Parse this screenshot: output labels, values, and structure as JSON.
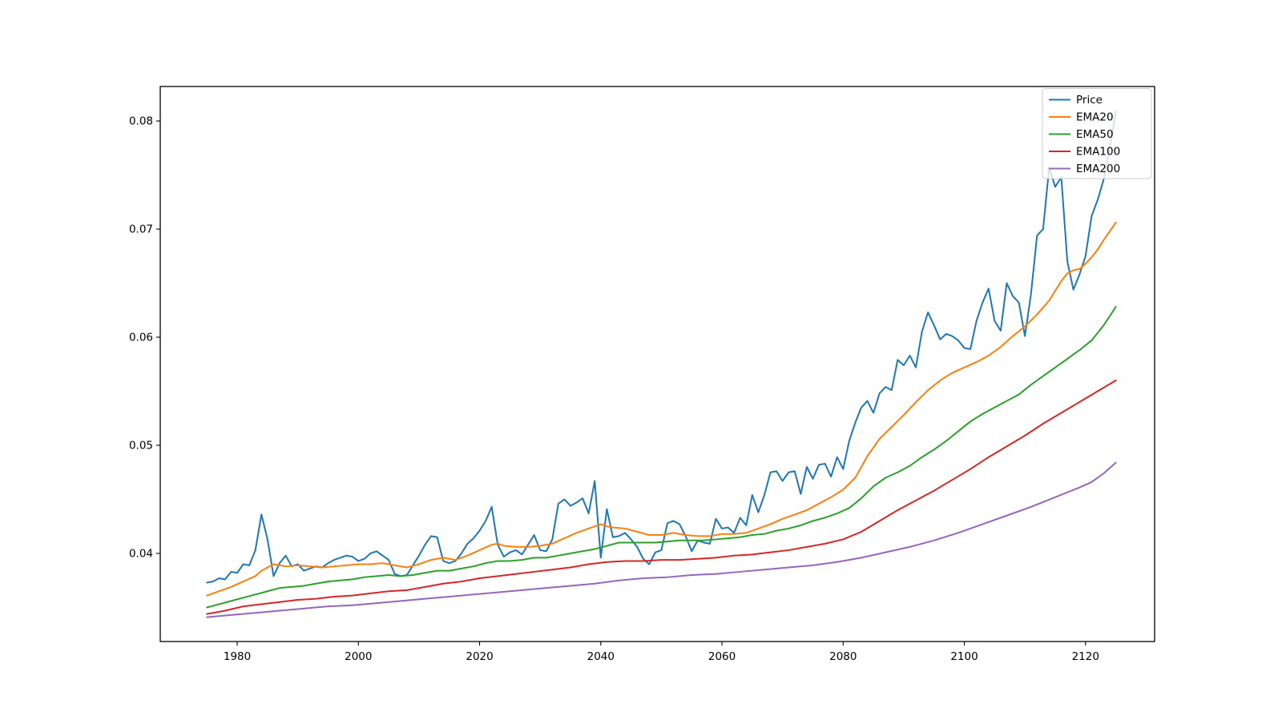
{
  "chart_data": {
    "type": "line",
    "title": "",
    "xlabel": "",
    "ylabel": "",
    "grid": false,
    "legend_position": "upper right",
    "legend_entries": [
      "Price",
      "EMA20",
      "EMA50",
      "EMA100",
      "EMA200"
    ],
    "x_ticks": [
      1980,
      2000,
      2020,
      2040,
      2060,
      2080,
      2100,
      2120
    ],
    "y_ticks": [
      0.04,
      0.05,
      0.06,
      0.07,
      0.08
    ],
    "xlim": [
      1967.3,
      2131.4
    ],
    "ylim": [
      0.03185,
      0.08319
    ],
    "series": [
      {
        "name": "Price",
        "color": "#1f77b4",
        "x_start": 1975,
        "x_step": 1,
        "values": [
          0.0373,
          0.0374,
          0.0377,
          0.0376,
          0.0383,
          0.0382,
          0.039,
          0.0389,
          0.0403,
          0.0436,
          0.0413,
          0.0379,
          0.0391,
          0.0398,
          0.0388,
          0.039,
          0.0384,
          0.0386,
          0.0388,
          0.0387,
          0.0391,
          0.0394,
          0.0396,
          0.0398,
          0.0397,
          0.0393,
          0.0395,
          0.04,
          0.0402,
          0.0398,
          0.0394,
          0.0381,
          0.0379,
          0.038,
          0.0389,
          0.0398,
          0.0408,
          0.0416,
          0.0415,
          0.0393,
          0.0391,
          0.0393,
          0.04,
          0.0409,
          0.0414,
          0.0421,
          0.043,
          0.0443,
          0.0408,
          0.0397,
          0.0401,
          0.0403,
          0.0399,
          0.0408,
          0.0417,
          0.0403,
          0.0402,
          0.0413,
          0.0446,
          0.045,
          0.0444,
          0.0447,
          0.0451,
          0.0437,
          0.0467,
          0.0396,
          0.0441,
          0.0415,
          0.0416,
          0.0419,
          0.0413,
          0.0406,
          0.0395,
          0.039,
          0.0401,
          0.0403,
          0.0428,
          0.043,
          0.0427,
          0.0416,
          0.0402,
          0.0412,
          0.041,
          0.0409,
          0.0432,
          0.0423,
          0.0424,
          0.0419,
          0.0433,
          0.0426,
          0.0454,
          0.0438,
          0.0454,
          0.0475,
          0.0476,
          0.0467,
          0.0475,
          0.0476,
          0.0455,
          0.048,
          0.0469,
          0.0482,
          0.0483,
          0.0471,
          0.0489,
          0.0478,
          0.0504,
          0.0521,
          0.0535,
          0.0541,
          0.053,
          0.0548,
          0.0554,
          0.0551,
          0.0579,
          0.0574,
          0.0583,
          0.0572,
          0.0605,
          0.0623,
          0.0611,
          0.0598,
          0.0603,
          0.0601,
          0.0597,
          0.059,
          0.0589,
          0.0615,
          0.0632,
          0.0645,
          0.0615,
          0.0606,
          0.065,
          0.0638,
          0.0632,
          0.0601,
          0.064,
          0.0694,
          0.07,
          0.0757,
          0.0739,
          0.0748,
          0.067,
          0.0644,
          0.0658,
          0.0675,
          0.0712,
          0.0727,
          0.0746,
          0.0775,
          0.0809
        ]
      },
      {
        "name": "EMA20",
        "color": "#ff7f0e",
        "points": [
          [
            1975,
            0.0361
          ],
          [
            1977,
            0.0365
          ],
          [
            1979,
            0.0369
          ],
          [
            1981,
            0.0374
          ],
          [
            1983,
            0.0379
          ],
          [
            1984,
            0.0384
          ],
          [
            1986,
            0.039
          ],
          [
            1988,
            0.0388
          ],
          [
            1990,
            0.0389
          ],
          [
            1992,
            0.0388
          ],
          [
            1994,
            0.0387
          ],
          [
            1996,
            0.0388
          ],
          [
            1998,
            0.0389
          ],
          [
            2000,
            0.039
          ],
          [
            2002,
            0.039
          ],
          [
            2004,
            0.0391
          ],
          [
            2006,
            0.0389
          ],
          [
            2008,
            0.0387
          ],
          [
            2010,
            0.039
          ],
          [
            2012,
            0.0394
          ],
          [
            2014,
            0.0396
          ],
          [
            2016,
            0.0394
          ],
          [
            2018,
            0.0398
          ],
          [
            2020,
            0.0403
          ],
          [
            2022,
            0.0408
          ],
          [
            2023,
            0.0409
          ],
          [
            2024,
            0.0407
          ],
          [
            2026,
            0.0406
          ],
          [
            2028,
            0.0406
          ],
          [
            2030,
            0.0407
          ],
          [
            2032,
            0.0409
          ],
          [
            2034,
            0.0414
          ],
          [
            2036,
            0.0419
          ],
          [
            2038,
            0.0423
          ],
          [
            2040,
            0.0427
          ],
          [
            2041,
            0.0425
          ],
          [
            2042,
            0.0424
          ],
          [
            2044,
            0.0423
          ],
          [
            2046,
            0.042
          ],
          [
            2048,
            0.0417
          ],
          [
            2050,
            0.0417
          ],
          [
            2052,
            0.0419
          ],
          [
            2054,
            0.0417
          ],
          [
            2056,
            0.0416
          ],
          [
            2058,
            0.0416
          ],
          [
            2060,
            0.0418
          ],
          [
            2062,
            0.0418
          ],
          [
            2064,
            0.0419
          ],
          [
            2066,
            0.0423
          ],
          [
            2068,
            0.0427
          ],
          [
            2070,
            0.0432
          ],
          [
            2072,
            0.0436
          ],
          [
            2074,
            0.044
          ],
          [
            2076,
            0.0446
          ],
          [
            2078,
            0.0452
          ],
          [
            2080,
            0.0459
          ],
          [
            2082,
            0.047
          ],
          [
            2084,
            0.049
          ],
          [
            2086,
            0.0506
          ],
          [
            2088,
            0.0517
          ],
          [
            2090,
            0.0528
          ],
          [
            2092,
            0.054
          ],
          [
            2094,
            0.0551
          ],
          [
            2096,
            0.056
          ],
          [
            2098,
            0.0567
          ],
          [
            2100,
            0.0572
          ],
          [
            2102,
            0.0577
          ],
          [
            2104,
            0.0583
          ],
          [
            2106,
            0.0591
          ],
          [
            2108,
            0.0601
          ],
          [
            2110,
            0.061
          ],
          [
            2112,
            0.0621
          ],
          [
            2114,
            0.0634
          ],
          [
            2116,
            0.0652
          ],
          [
            2117,
            0.0659
          ],
          [
            2118,
            0.0662
          ],
          [
            2119,
            0.0663
          ],
          [
            2120,
            0.0668
          ],
          [
            2121,
            0.0674
          ],
          [
            2122,
            0.0681
          ],
          [
            2123,
            0.069
          ],
          [
            2124,
            0.0698
          ],
          [
            2125,
            0.0706
          ]
        ]
      },
      {
        "name": "EMA50",
        "color": "#2ca02c",
        "points": [
          [
            1975,
            0.035
          ],
          [
            1977,
            0.0353
          ],
          [
            1979,
            0.0356
          ],
          [
            1981,
            0.0359
          ],
          [
            1983,
            0.0362
          ],
          [
            1985,
            0.0365
          ],
          [
            1987,
            0.0368
          ],
          [
            1989,
            0.0369
          ],
          [
            1991,
            0.037
          ],
          [
            1993,
            0.0372
          ],
          [
            1995,
            0.0374
          ],
          [
            1997,
            0.0375
          ],
          [
            1999,
            0.0376
          ],
          [
            2001,
            0.0378
          ],
          [
            2003,
            0.0379
          ],
          [
            2005,
            0.038
          ],
          [
            2007,
            0.0379
          ],
          [
            2009,
            0.038
          ],
          [
            2011,
            0.0382
          ],
          [
            2013,
            0.0384
          ],
          [
            2015,
            0.0384
          ],
          [
            2017,
            0.0386
          ],
          [
            2019,
            0.0388
          ],
          [
            2021,
            0.0391
          ],
          [
            2023,
            0.0393
          ],
          [
            2025,
            0.0393
          ],
          [
            2027,
            0.0394
          ],
          [
            2029,
            0.0396
          ],
          [
            2031,
            0.0396
          ],
          [
            2033,
            0.0398
          ],
          [
            2035,
            0.04
          ],
          [
            2037,
            0.0402
          ],
          [
            2039,
            0.0404
          ],
          [
            2041,
            0.0407
          ],
          [
            2043,
            0.041
          ],
          [
            2045,
            0.041
          ],
          [
            2047,
            0.041
          ],
          [
            2049,
            0.041
          ],
          [
            2051,
            0.0411
          ],
          [
            2053,
            0.0412
          ],
          [
            2055,
            0.0412
          ],
          [
            2057,
            0.0412
          ],
          [
            2059,
            0.0413
          ],
          [
            2061,
            0.0414
          ],
          [
            2063,
            0.0415
          ],
          [
            2065,
            0.0417
          ],
          [
            2067,
            0.0418
          ],
          [
            2069,
            0.0421
          ],
          [
            2071,
            0.0423
          ],
          [
            2073,
            0.0426
          ],
          [
            2075,
            0.043
          ],
          [
            2077,
            0.0433
          ],
          [
            2079,
            0.0437
          ],
          [
            2081,
            0.0442
          ],
          [
            2083,
            0.0451
          ],
          [
            2085,
            0.0462
          ],
          [
            2087,
            0.047
          ],
          [
            2089,
            0.0475
          ],
          [
            2091,
            0.0481
          ],
          [
            2093,
            0.0489
          ],
          [
            2095,
            0.0496
          ],
          [
            2097,
            0.0504
          ],
          [
            2099,
            0.0513
          ],
          [
            2101,
            0.0522
          ],
          [
            2103,
            0.0529
          ],
          [
            2105,
            0.0535
          ],
          [
            2107,
            0.0541
          ],
          [
            2109,
            0.0547
          ],
          [
            2111,
            0.0556
          ],
          [
            2113,
            0.0564
          ],
          [
            2115,
            0.0572
          ],
          [
            2117,
            0.058
          ],
          [
            2119,
            0.0588
          ],
          [
            2121,
            0.0597
          ],
          [
            2123,
            0.0611
          ],
          [
            2125,
            0.0628
          ]
        ]
      },
      {
        "name": "EMA100",
        "color": "#d62728",
        "points": [
          [
            1975,
            0.0344
          ],
          [
            1978,
            0.0347
          ],
          [
            1981,
            0.0351
          ],
          [
            1984,
            0.0353
          ],
          [
            1987,
            0.0355
          ],
          [
            1990,
            0.0357
          ],
          [
            1993,
            0.0358
          ],
          [
            1996,
            0.036
          ],
          [
            1999,
            0.0361
          ],
          [
            2002,
            0.0363
          ],
          [
            2005,
            0.0365
          ],
          [
            2008,
            0.0366
          ],
          [
            2011,
            0.0369
          ],
          [
            2014,
            0.0372
          ],
          [
            2017,
            0.0374
          ],
          [
            2020,
            0.0377
          ],
          [
            2023,
            0.0379
          ],
          [
            2026,
            0.0381
          ],
          [
            2029,
            0.0383
          ],
          [
            2032,
            0.0385
          ],
          [
            2035,
            0.0387
          ],
          [
            2038,
            0.039
          ],
          [
            2041,
            0.0392
          ],
          [
            2044,
            0.0393
          ],
          [
            2047,
            0.0393
          ],
          [
            2050,
            0.0394
          ],
          [
            2053,
            0.0394
          ],
          [
            2056,
            0.0395
          ],
          [
            2059,
            0.0396
          ],
          [
            2062,
            0.0398
          ],
          [
            2065,
            0.0399
          ],
          [
            2068,
            0.0401
          ],
          [
            2071,
            0.0403
          ],
          [
            2074,
            0.0406
          ],
          [
            2077,
            0.0409
          ],
          [
            2080,
            0.0413
          ],
          [
            2083,
            0.042
          ],
          [
            2086,
            0.043
          ],
          [
            2089,
            0.044
          ],
          [
            2092,
            0.0449
          ],
          [
            2095,
            0.0458
          ],
          [
            2098,
            0.0468
          ],
          [
            2101,
            0.0478
          ],
          [
            2104,
            0.0489
          ],
          [
            2107,
            0.0499
          ],
          [
            2110,
            0.0509
          ],
          [
            2113,
            0.052
          ],
          [
            2116,
            0.053
          ],
          [
            2119,
            0.054
          ],
          [
            2122,
            0.055
          ],
          [
            2125,
            0.056
          ]
        ]
      },
      {
        "name": "EMA200",
        "color": "#9467bd",
        "points": [
          [
            1975,
            0.0341
          ],
          [
            1979,
            0.0343
          ],
          [
            1983,
            0.0345
          ],
          [
            1987,
            0.0347
          ],
          [
            1991,
            0.0349
          ],
          [
            1995,
            0.0351
          ],
          [
            1999,
            0.0352
          ],
          [
            2003,
            0.0354
          ],
          [
            2007,
            0.0356
          ],
          [
            2011,
            0.0358
          ],
          [
            2015,
            0.036
          ],
          [
            2019,
            0.0362
          ],
          [
            2023,
            0.0364
          ],
          [
            2027,
            0.0366
          ],
          [
            2031,
            0.0368
          ],
          [
            2035,
            0.037
          ],
          [
            2039,
            0.0372
          ],
          [
            2043,
            0.0375
          ],
          [
            2047,
            0.0377
          ],
          [
            2051,
            0.0378
          ],
          [
            2055,
            0.038
          ],
          [
            2059,
            0.0381
          ],
          [
            2063,
            0.0383
          ],
          [
            2067,
            0.0385
          ],
          [
            2071,
            0.0387
          ],
          [
            2075,
            0.0389
          ],
          [
            2079,
            0.0392
          ],
          [
            2083,
            0.0396
          ],
          [
            2087,
            0.0401
          ],
          [
            2091,
            0.0406
          ],
          [
            2095,
            0.0412
          ],
          [
            2099,
            0.0419
          ],
          [
            2103,
            0.0427
          ],
          [
            2107,
            0.0435
          ],
          [
            2111,
            0.0443
          ],
          [
            2115,
            0.0452
          ],
          [
            2119,
            0.0461
          ],
          [
            2121,
            0.0466
          ],
          [
            2123,
            0.0474
          ],
          [
            2125,
            0.0484
          ]
        ]
      }
    ]
  },
  "legend": {
    "border_color": "#cccccc",
    "background": "rgba(255,255,255,0.8)"
  },
  "axes": {
    "spine_color": "#000000",
    "tick_color": "#000000"
  }
}
